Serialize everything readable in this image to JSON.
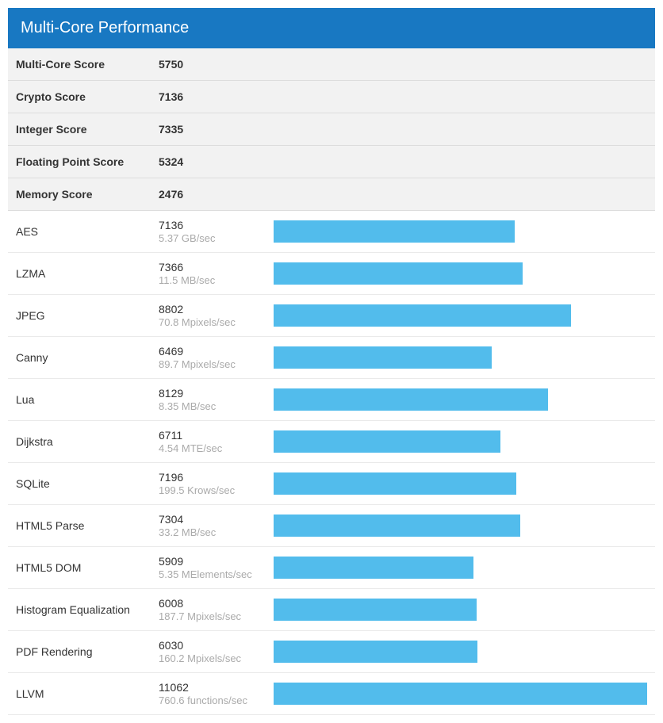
{
  "header": {
    "title": "Multi-Core Performance"
  },
  "colors": {
    "header_bg": "#1878c2",
    "header_text": "#ffffff",
    "summary_bg": "#f2f2f2",
    "bar_color": "#52bcec",
    "text": "#333333",
    "detail_text": "#aaaaaa",
    "border": "#dddddd"
  },
  "bar_max": 11062,
  "summary": [
    {
      "label": "Multi-Core Score",
      "value": "5750"
    },
    {
      "label": "Crypto Score",
      "value": "7136"
    },
    {
      "label": "Integer Score",
      "value": "7335"
    },
    {
      "label": "Floating Point Score",
      "value": "5324"
    },
    {
      "label": "Memory Score",
      "value": "2476"
    }
  ],
  "benchmarks": [
    {
      "label": "AES",
      "score": "7136",
      "detail": "5.37 GB/sec",
      "bar_value": 7136
    },
    {
      "label": "LZMA",
      "score": "7366",
      "detail": "11.5 MB/sec",
      "bar_value": 7366
    },
    {
      "label": "JPEG",
      "score": "8802",
      "detail": "70.8 Mpixels/sec",
      "bar_value": 8802
    },
    {
      "label": "Canny",
      "score": "6469",
      "detail": "89.7 Mpixels/sec",
      "bar_value": 6469
    },
    {
      "label": "Lua",
      "score": "8129",
      "detail": "8.35 MB/sec",
      "bar_value": 8129
    },
    {
      "label": "Dijkstra",
      "score": "6711",
      "detail": "4.54 MTE/sec",
      "bar_value": 6711
    },
    {
      "label": "SQLite",
      "score": "7196",
      "detail": "199.5 Krows/sec",
      "bar_value": 7196
    },
    {
      "label": "HTML5 Parse",
      "score": "7304",
      "detail": "33.2 MB/sec",
      "bar_value": 7304
    },
    {
      "label": "HTML5 DOM",
      "score": "5909",
      "detail": "5.35 MElements/sec",
      "bar_value": 5909
    },
    {
      "label": "Histogram Equalization",
      "score": "6008",
      "detail": "187.7 Mpixels/sec",
      "bar_value": 6008
    },
    {
      "label": "PDF Rendering",
      "score": "6030",
      "detail": "160.2 Mpixels/sec",
      "bar_value": 6030
    },
    {
      "label": "LLVM",
      "score": "11062",
      "detail": "760.6 functions/sec",
      "bar_value": 11062
    }
  ]
}
